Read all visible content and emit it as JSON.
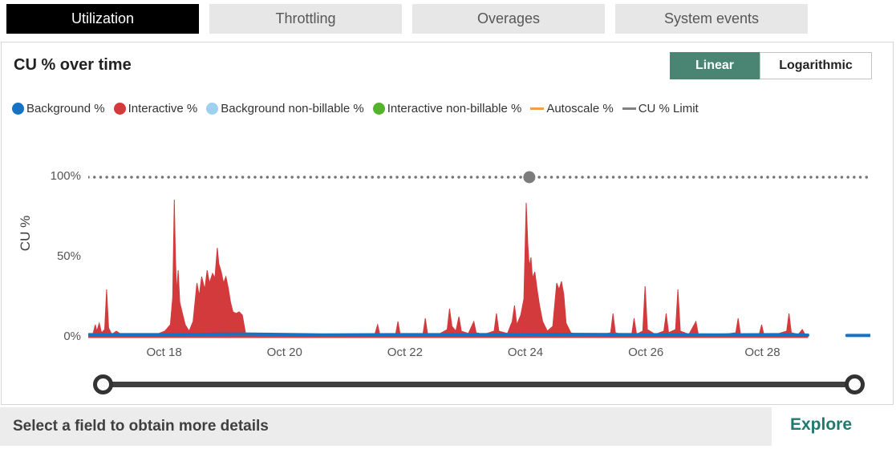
{
  "tabs": [
    {
      "label": "Utilization",
      "active": true
    },
    {
      "label": "Throttling",
      "active": false
    },
    {
      "label": "Overages",
      "active": false
    },
    {
      "label": "System events",
      "active": false
    }
  ],
  "panel": {
    "title": "CU % over time",
    "scale_toggle": {
      "linear": "Linear",
      "logarithmic": "Logarithmic",
      "selected": "Linear"
    },
    "legend": [
      {
        "label": "Background %",
        "color": "#1673c4",
        "marker": "dot"
      },
      {
        "label": "Interactive %",
        "color": "#d23a3c",
        "marker": "dot"
      },
      {
        "label": "Background non-billable %",
        "color": "#9fd0f0",
        "marker": "dot"
      },
      {
        "label": "Interactive non-billable %",
        "color": "#54b32b",
        "marker": "dot"
      },
      {
        "label": "Autoscale %",
        "color": "#f0a04a",
        "marker": "line"
      },
      {
        "label": "CU % Limit",
        "color": "#808080",
        "marker": "line"
      }
    ]
  },
  "colors": {
    "active_tab": "#000000",
    "linear_button": "#4a8573",
    "explore_link": "#1f7a6d",
    "limit_line": "#757575"
  },
  "chart_data": {
    "type": "area",
    "title": "CU % over time",
    "xlabel": "",
    "ylabel": "CU %",
    "ylim": [
      0,
      105
    ],
    "y_ticks": [
      {
        "label": "0%",
        "value": 0
      },
      {
        "label": "50%",
        "value": 50
      },
      {
        "label": "100%",
        "value": 100
      }
    ],
    "x_ticks": [
      {
        "label": "Oct 18",
        "pos": 9.7
      },
      {
        "label": "Oct 20",
        "pos": 25.1
      },
      {
        "label": "Oct 22",
        "pos": 40.5
      },
      {
        "label": "Oct 24",
        "pos": 55.9
      },
      {
        "label": "Oct 26",
        "pos": 71.3
      },
      {
        "label": "Oct 28",
        "pos": 86.2
      }
    ],
    "limit_line": {
      "label": "CU % Limit",
      "value": 100,
      "style": "dotted",
      "marker_x": 56.4
    },
    "series": [
      {
        "name": "Interactive %",
        "color": "#d23a3c",
        "points": [
          [
            0,
            0.5
          ],
          [
            0.6,
            2
          ],
          [
            0.9,
            8
          ],
          [
            1.1,
            4
          ],
          [
            1.4,
            9
          ],
          [
            1.7,
            3
          ],
          [
            2.1,
            5
          ],
          [
            2.35,
            30
          ],
          [
            2.6,
            6
          ],
          [
            3.0,
            2
          ],
          [
            3.6,
            4
          ],
          [
            4.2,
            2
          ],
          [
            5,
            2
          ],
          [
            6,
            1.5
          ],
          [
            7,
            1.5
          ],
          [
            8,
            2
          ],
          [
            9,
            2.5
          ],
          [
            9.8,
            4
          ],
          [
            10.5,
            8
          ],
          [
            10.8,
            25
          ],
          [
            11.0,
            86
          ],
          [
            11.15,
            50
          ],
          [
            11.3,
            28
          ],
          [
            11.5,
            42
          ],
          [
            11.7,
            22
          ],
          [
            12.0,
            16
          ],
          [
            12.4,
            8
          ],
          [
            12.9,
            4
          ],
          [
            13.4,
            10
          ],
          [
            13.9,
            34
          ],
          [
            14.2,
            26
          ],
          [
            14.5,
            38
          ],
          [
            14.9,
            30
          ],
          [
            15.2,
            42
          ],
          [
            15.5,
            34
          ],
          [
            15.9,
            40
          ],
          [
            16.2,
            37
          ],
          [
            16.5,
            56
          ],
          [
            16.7,
            46
          ],
          [
            17.0,
            41
          ],
          [
            17.3,
            34
          ],
          [
            17.6,
            38
          ],
          [
            17.9,
            31
          ],
          [
            18.2,
            22
          ],
          [
            18.5,
            16
          ],
          [
            18.9,
            15
          ],
          [
            19.3,
            16
          ],
          [
            19.7,
            14
          ],
          [
            20.1,
            3
          ],
          [
            20.6,
            1.5
          ],
          [
            21.5,
            1
          ],
          [
            23,
            1
          ],
          [
            25,
            1
          ],
          [
            27,
            1
          ],
          [
            29,
            1
          ],
          [
            31,
            1
          ],
          [
            33,
            1
          ],
          [
            35,
            1
          ],
          [
            36.6,
            1.5
          ],
          [
            37.0,
            8
          ],
          [
            37.3,
            1.5
          ],
          [
            38.2,
            1
          ],
          [
            39.3,
            2
          ],
          [
            39.6,
            10
          ],
          [
            39.9,
            1.5
          ],
          [
            41,
            1
          ],
          [
            42.8,
            2
          ],
          [
            43.1,
            12
          ],
          [
            43.4,
            2
          ],
          [
            44.6,
            1.5
          ],
          [
            45.9,
            5
          ],
          [
            46.2,
            18
          ],
          [
            46.5,
            7
          ],
          [
            47.0,
            4
          ],
          [
            47.4,
            13
          ],
          [
            47.7,
            4
          ],
          [
            48.6,
            2.5
          ],
          [
            49.3,
            10
          ],
          [
            49.6,
            3
          ],
          [
            50.6,
            2
          ],
          [
            51.9,
            4
          ],
          [
            52.2,
            15
          ],
          [
            52.5,
            4
          ],
          [
            53.6,
            2.5
          ],
          [
            54.2,
            10
          ],
          [
            54.5,
            20
          ],
          [
            54.8,
            8
          ],
          [
            55.3,
            14
          ],
          [
            55.7,
            24
          ],
          [
            56.0,
            84
          ],
          [
            56.2,
            58
          ],
          [
            56.4,
            44
          ],
          [
            56.6,
            50
          ],
          [
            56.8,
            37
          ],
          [
            57.1,
            41
          ],
          [
            57.4,
            30
          ],
          [
            57.7,
            20
          ],
          [
            58.1,
            10
          ],
          [
            58.7,
            4
          ],
          [
            59.4,
            7
          ],
          [
            59.9,
            34
          ],
          [
            60.2,
            30
          ],
          [
            60.5,
            35
          ],
          [
            60.8,
            27
          ],
          [
            61.1,
            9
          ],
          [
            61.7,
            3
          ],
          [
            62.6,
            1.5
          ],
          [
            64,
            1.5
          ],
          [
            65.5,
            1.5
          ],
          [
            66.8,
            3
          ],
          [
            67.1,
            15
          ],
          [
            67.4,
            3
          ],
          [
            68.5,
            1.5
          ],
          [
            69.5,
            2
          ],
          [
            69.8,
            12
          ],
          [
            70.1,
            2
          ],
          [
            70.9,
            4
          ],
          [
            71.2,
            32
          ],
          [
            71.5,
            5
          ],
          [
            72.5,
            2
          ],
          [
            73.6,
            4
          ],
          [
            73.9,
            15
          ],
          [
            74.2,
            3
          ],
          [
            75.1,
            5
          ],
          [
            75.4,
            30
          ],
          [
            75.7,
            4
          ],
          [
            76.8,
            2
          ],
          [
            77.7,
            10
          ],
          [
            78.0,
            2
          ],
          [
            79.2,
            1.5
          ],
          [
            80.5,
            1.5
          ],
          [
            82.8,
            3
          ],
          [
            83.1,
            12
          ],
          [
            83.4,
            2
          ],
          [
            84.6,
            1.5
          ],
          [
            85.8,
            2
          ],
          [
            86.1,
            8
          ],
          [
            86.4,
            1.5
          ],
          [
            87.6,
            1.5
          ],
          [
            89.3,
            4
          ],
          [
            89.6,
            15
          ],
          [
            89.9,
            3
          ],
          [
            90.8,
            2
          ],
          [
            91.3,
            5
          ],
          [
            91.7,
            1.5
          ],
          [
            92.0,
            0.5
          ]
        ]
      },
      {
        "name": "Background %",
        "color": "#1673c4",
        "segments": [
          [
            [
              0,
              1.8
            ],
            [
              10,
              1.8
            ],
            [
              20,
              2.2
            ],
            [
              30,
              1.6
            ],
            [
              40,
              1.8
            ],
            [
              50,
              1.8
            ],
            [
              60,
              2.0
            ],
            [
              70,
              1.8
            ],
            [
              80,
              1.6
            ],
            [
              88,
              1.8
            ],
            [
              92,
              1.5
            ]
          ],
          [
            [
              97,
              1.3
            ],
            [
              100,
              1.3
            ]
          ]
        ]
      }
    ]
  },
  "slider": {
    "start_percent": 0,
    "end_percent": 100
  },
  "footer": {
    "message": "Select a field to obtain more details",
    "explore_label": "Explore"
  }
}
